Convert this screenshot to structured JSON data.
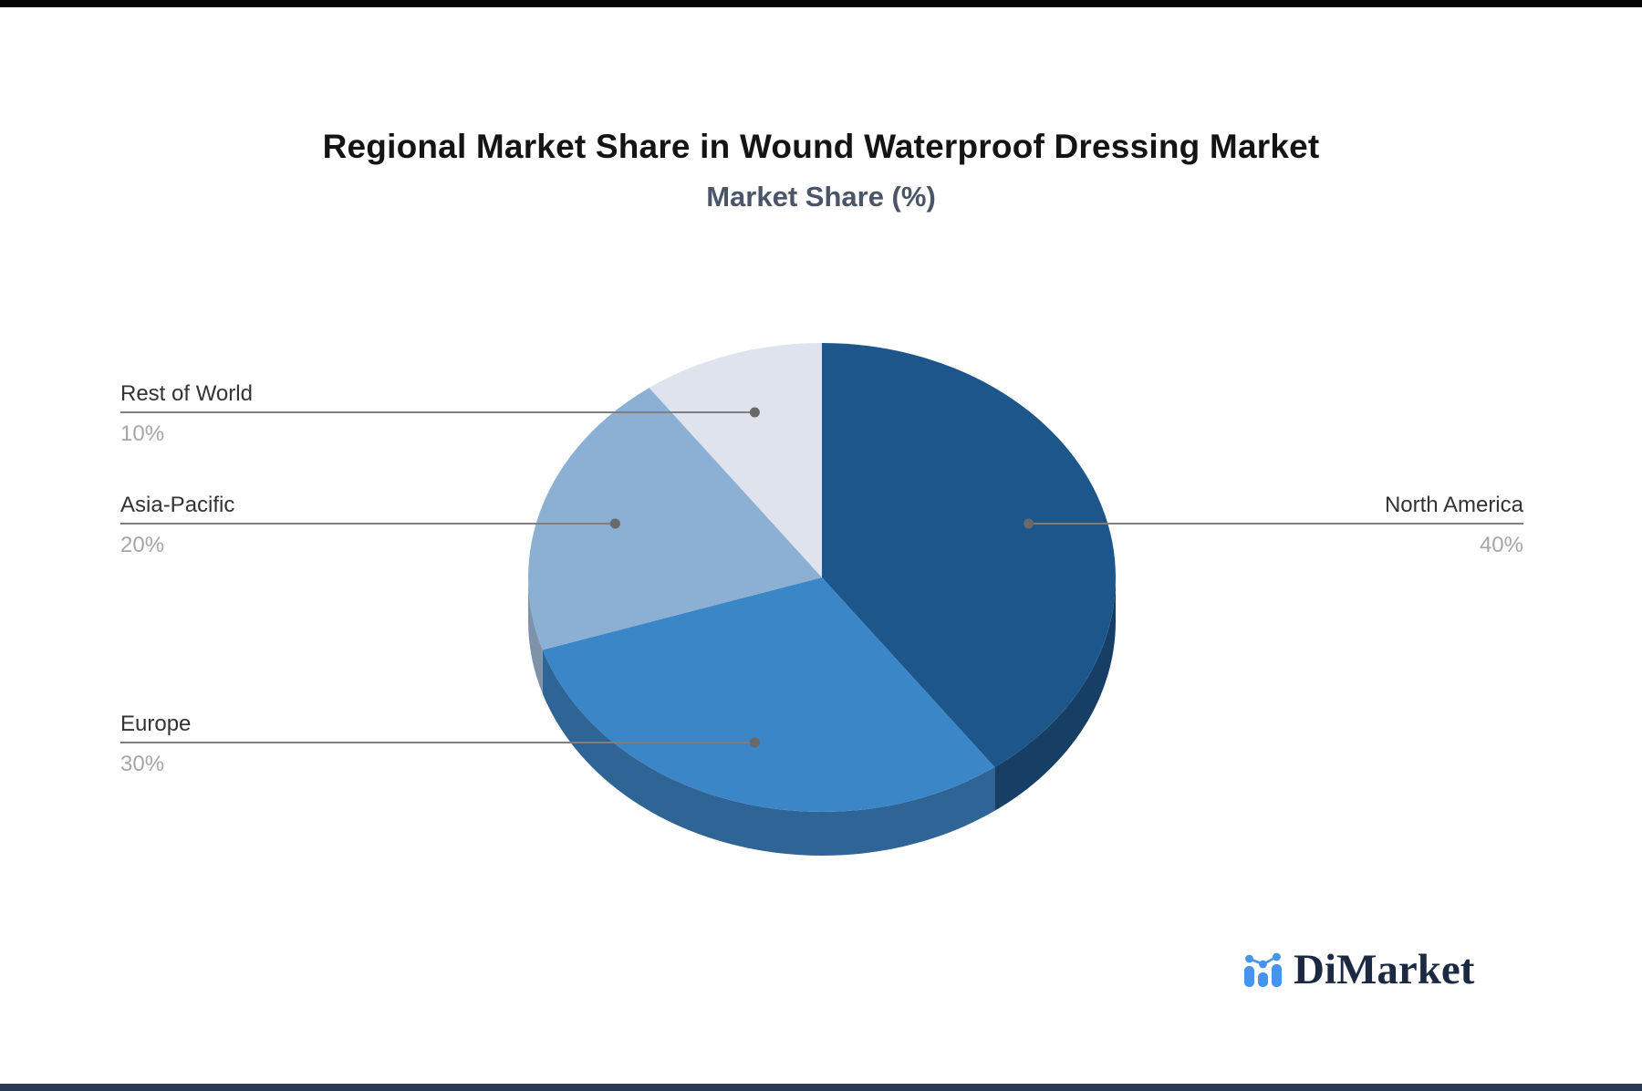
{
  "title": "Regional Market Share in Wound Waterproof Dressing Market",
  "subtitle": "Market Share (%)",
  "chart_data": {
    "type": "pie",
    "title": "Regional Market Share in Wound Waterproof Dressing Market",
    "subtitle": "Market Share (%)",
    "effect": "3d",
    "start_angle_deg": 0,
    "direction": "clockwise",
    "total": 100,
    "slices": [
      {
        "label": "North America",
        "value": 40,
        "display": "40%",
        "color": "#1d568b",
        "side_color": "#173f66",
        "label_side": "right"
      },
      {
        "label": "Europe",
        "value": 30,
        "display": "30%",
        "color": "#3b86c7",
        "side_color": "#2f6496",
        "label_side": "left"
      },
      {
        "label": "Asia-Pacific",
        "value": 20,
        "display": "20%",
        "color": "#8cafd4",
        "side_color": "#7e92aa",
        "label_side": "left"
      },
      {
        "label": "Rest of World",
        "value": 10,
        "display": "10%",
        "color": "#dee3ee",
        "side_color": "#b9c3d3",
        "label_side": "left"
      }
    ],
    "legend_position": "none",
    "grid": false
  },
  "leader": {
    "line_color": "#7f7f7f",
    "dot_color": "#696969",
    "label_color": "#333333",
    "value_color": "#a6a6a6"
  },
  "branding": {
    "name": "DiMarket",
    "icon": "bar-line-chart-icon",
    "text_color": "#1b2a42",
    "icon_color": "#4793f0"
  }
}
